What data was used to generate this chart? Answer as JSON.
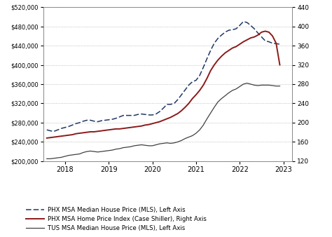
{
  "title": "",
  "left_ylim": [
    200000,
    520000
  ],
  "right_ylim": [
    120,
    440
  ],
  "left_yticks": [
    200000,
    240000,
    280000,
    320000,
    360000,
    400000,
    440000,
    480000,
    520000
  ],
  "right_yticks": [
    120,
    160,
    200,
    240,
    280,
    320,
    360,
    400,
    440
  ],
  "xlim_start": 2017.5,
  "xlim_end": 2023.2,
  "xticks": [
    2018,
    2019,
    2020,
    2021,
    2022,
    2023
  ],
  "background_color": "#ffffff",
  "grid_color": "#b0b0b0",
  "phx_mls_color": "#1f3864",
  "phx_cs_color": "#8b1a1a",
  "tus_mls_color": "#404040",
  "legend_labels": [
    "PHX MSA Median House Price (MLS), Left Axis",
    "PHX MSA Home Price Index (Case Shiller), Right Axis",
    "TUS MSA Median House Price (MLS), Left Axis"
  ],
  "phx_mls_x": [
    2017.583,
    2017.667,
    2017.75,
    2017.833,
    2017.917,
    2018.0,
    2018.083,
    2018.167,
    2018.25,
    2018.333,
    2018.417,
    2018.5,
    2018.583,
    2018.667,
    2018.75,
    2018.833,
    2018.917,
    2019.0,
    2019.083,
    2019.167,
    2019.25,
    2019.333,
    2019.417,
    2019.5,
    2019.583,
    2019.667,
    2019.75,
    2019.833,
    2019.917,
    2020.0,
    2020.083,
    2020.167,
    2020.25,
    2020.333,
    2020.417,
    2020.5,
    2020.583,
    2020.667,
    2020.75,
    2020.833,
    2020.917,
    2021.0,
    2021.083,
    2021.167,
    2021.25,
    2021.333,
    2021.417,
    2021.5,
    2021.583,
    2021.667,
    2021.75,
    2021.833,
    2021.917,
    2022.0,
    2022.083,
    2022.167,
    2022.25,
    2022.333,
    2022.417,
    2022.5,
    2022.583,
    2022.667,
    2022.75,
    2022.833,
    2022.917
  ],
  "phx_mls_y": [
    265000,
    263000,
    262000,
    265000,
    268000,
    270000,
    272000,
    275000,
    278000,
    280000,
    283000,
    285000,
    285000,
    283000,
    282000,
    284000,
    285000,
    286000,
    287000,
    289000,
    292000,
    295000,
    295000,
    295000,
    295000,
    297000,
    298000,
    297000,
    296000,
    296000,
    298000,
    303000,
    310000,
    318000,
    318000,
    320000,
    328000,
    338000,
    348000,
    358000,
    365000,
    368000,
    378000,
    395000,
    413000,
    430000,
    445000,
    455000,
    462000,
    468000,
    472000,
    473000,
    475000,
    482000,
    490000,
    488000,
    482000,
    475000,
    466000,
    458000,
    450000,
    448000,
    445000,
    444000,
    443000
  ],
  "phx_cs_x": [
    2017.583,
    2017.667,
    2017.75,
    2017.833,
    2017.917,
    2018.0,
    2018.083,
    2018.167,
    2018.25,
    2018.333,
    2018.417,
    2018.5,
    2018.583,
    2018.667,
    2018.75,
    2018.833,
    2018.917,
    2019.0,
    2019.083,
    2019.167,
    2019.25,
    2019.333,
    2019.417,
    2019.5,
    2019.583,
    2019.667,
    2019.75,
    2019.833,
    2019.917,
    2020.0,
    2020.083,
    2020.167,
    2020.25,
    2020.333,
    2020.417,
    2020.5,
    2020.583,
    2020.667,
    2020.75,
    2020.833,
    2020.917,
    2021.0,
    2021.083,
    2021.167,
    2021.25,
    2021.333,
    2021.417,
    2021.5,
    2021.583,
    2021.667,
    2021.75,
    2021.833,
    2021.917,
    2022.0,
    2022.083,
    2022.167,
    2022.25,
    2022.333,
    2022.417,
    2022.5,
    2022.583,
    2022.667,
    2022.75,
    2022.833,
    2022.917
  ],
  "phx_cs_y": [
    168,
    169,
    170,
    171,
    172,
    173,
    174,
    175,
    177,
    178,
    179,
    180,
    181,
    181,
    182,
    183,
    184,
    185,
    186,
    187,
    187,
    188,
    189,
    190,
    191,
    192,
    193,
    195,
    196,
    198,
    200,
    202,
    205,
    208,
    211,
    215,
    219,
    225,
    232,
    240,
    250,
    258,
    267,
    278,
    292,
    308,
    320,
    330,
    338,
    345,
    350,
    355,
    358,
    363,
    368,
    372,
    376,
    378,
    382,
    388,
    390,
    388,
    380,
    365,
    320
  ],
  "tus_mls_x": [
    2017.583,
    2017.667,
    2017.75,
    2017.833,
    2017.917,
    2018.0,
    2018.083,
    2018.167,
    2018.25,
    2018.333,
    2018.417,
    2018.5,
    2018.583,
    2018.667,
    2018.75,
    2018.833,
    2018.917,
    2019.0,
    2019.083,
    2019.167,
    2019.25,
    2019.333,
    2019.417,
    2019.5,
    2019.583,
    2019.667,
    2019.75,
    2019.833,
    2019.917,
    2020.0,
    2020.083,
    2020.167,
    2020.25,
    2020.333,
    2020.417,
    2020.5,
    2020.583,
    2020.667,
    2020.75,
    2020.833,
    2020.917,
    2021.0,
    2021.083,
    2021.167,
    2021.25,
    2021.333,
    2021.417,
    2021.5,
    2021.583,
    2021.667,
    2021.75,
    2021.833,
    2021.917,
    2022.0,
    2022.083,
    2022.167,
    2022.25,
    2022.333,
    2022.417,
    2022.5,
    2022.583,
    2022.667,
    2022.75,
    2022.833,
    2022.917
  ],
  "tus_mls_y": [
    205000,
    205000,
    206000,
    207000,
    208000,
    210000,
    212000,
    213000,
    214000,
    215000,
    218000,
    220000,
    221000,
    220000,
    219000,
    220000,
    221000,
    222000,
    223000,
    225000,
    226000,
    228000,
    229000,
    230000,
    232000,
    233000,
    234000,
    233000,
    232000,
    232000,
    234000,
    236000,
    237000,
    238000,
    237000,
    238000,
    240000,
    243000,
    247000,
    250000,
    253000,
    258000,
    265000,
    275000,
    288000,
    300000,
    312000,
    323000,
    330000,
    336000,
    342000,
    347000,
    350000,
    355000,
    360000,
    362000,
    360000,
    358000,
    357000,
    358000,
    358000,
    358000,
    357000,
    356000,
    356000
  ]
}
